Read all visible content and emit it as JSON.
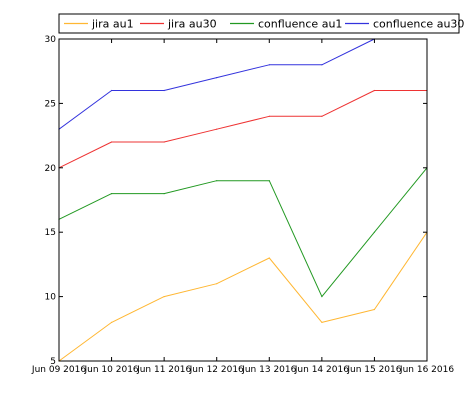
{
  "chart_data": {
    "type": "line",
    "title": "",
    "xlabel": "",
    "ylabel": "",
    "categories": [
      "Jun 09 2016",
      "Jun 10 2016",
      "Jun 11 2016",
      "Jun 12 2016",
      "Jun 13 2016",
      "Jun 14 2016",
      "Jun 15 2016",
      "Jun 16 2016"
    ],
    "ylim": [
      5,
      30
    ],
    "yticks": [
      "5",
      "10",
      "15",
      "20",
      "25",
      "30"
    ],
    "grid": false,
    "legend_position": "top",
    "series": [
      {
        "name": "jira au1",
        "color": "#ffb733",
        "values": [
          5,
          8,
          10,
          11,
          13,
          8,
          9,
          15
        ]
      },
      {
        "name": "jira au30",
        "color": "#ee3333",
        "values": [
          20,
          22,
          22,
          23,
          24,
          24,
          26,
          26
        ]
      },
      {
        "name": "confluence au1",
        "color": "#229922",
        "values": [
          16,
          18,
          18,
          19,
          19,
          10,
          15,
          20
        ]
      },
      {
        "name": "confluence au30",
        "color": "#3333dd",
        "values": [
          23,
          26,
          26,
          27,
          28,
          28,
          30,
          30
        ]
      }
    ]
  }
}
